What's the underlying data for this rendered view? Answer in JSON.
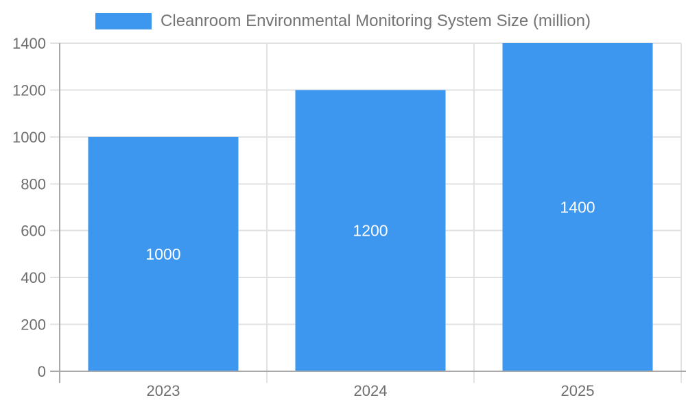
{
  "legend": {
    "label": "Cleanroom Environmental Monitoring System Size (million)"
  },
  "chart_data": {
    "type": "bar",
    "title": "Cleanroom Environmental Monitoring System Size (million)",
    "legend_position": "top",
    "grid": true,
    "categories": [
      "2023",
      "2024",
      "2025"
    ],
    "values": [
      1000,
      1200,
      1400
    ],
    "bar_labels": [
      "1000",
      "1200",
      "1400"
    ],
    "ylim": [
      0,
      1400
    ],
    "ytick_interval": 200,
    "ytick_values": [
      0,
      200,
      400,
      600,
      800,
      1000,
      1200,
      1400
    ],
    "ytick_labels": [
      "0",
      "200",
      "400",
      "600",
      "800",
      "1000",
      "1200",
      "1400"
    ],
    "xlabel": "",
    "ylabel": "",
    "colors": {
      "bar": "#3D97EE",
      "bar_label": "#FFFFFF",
      "axis_line": "#A9A9A9",
      "grid_line": "#E2E2E2",
      "tick_label": "#6E6E6E",
      "legend_text": "#757575"
    }
  }
}
